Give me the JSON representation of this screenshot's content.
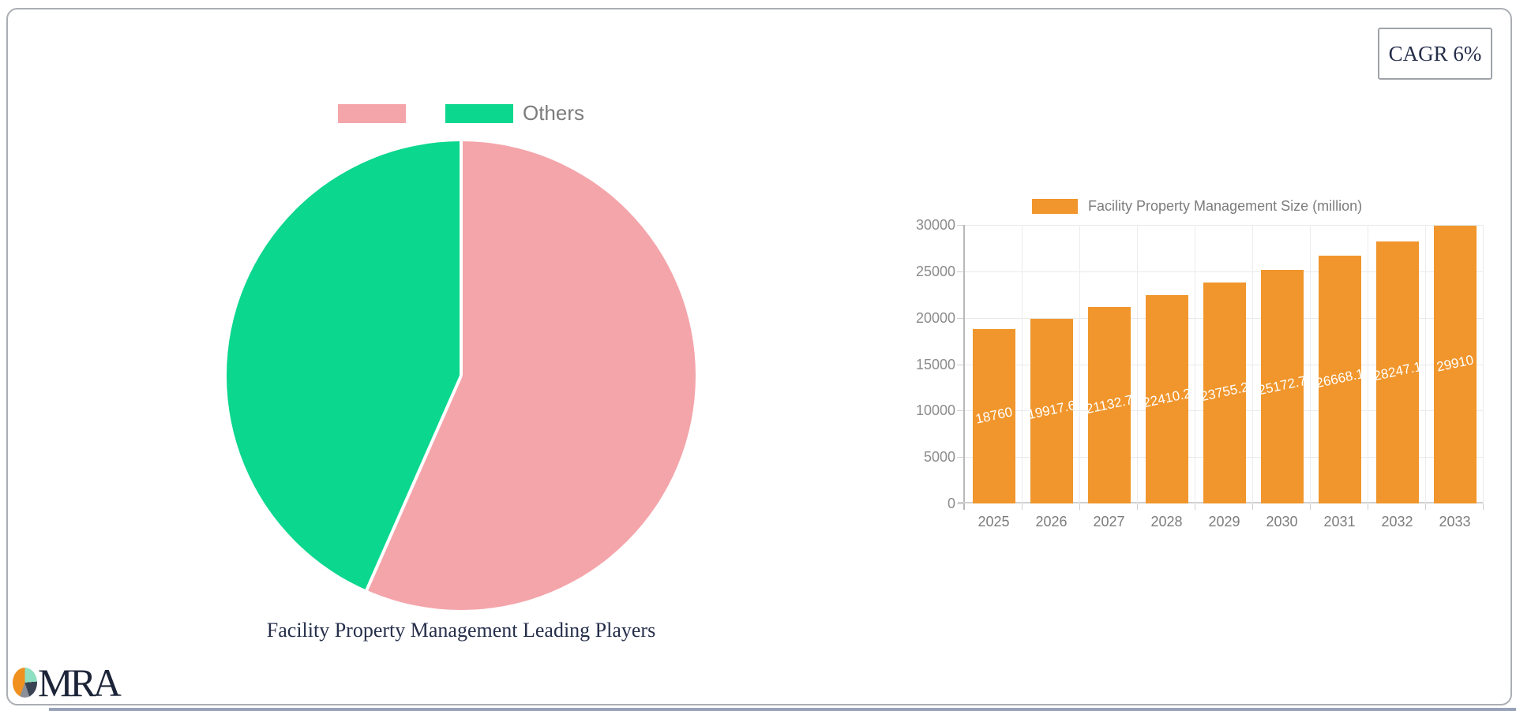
{
  "badge": {
    "label": "CAGR 6%"
  },
  "logo": {
    "text": "MRA"
  },
  "pie": {
    "title": "Facility Property Management Leading Players",
    "legend": [
      {
        "label": "",
        "color": "#F4A5AA"
      },
      {
        "label": "Others",
        "color": "#0BD78E"
      }
    ]
  },
  "bar": {
    "legend_label": "Facility Property Management Size (million)"
  },
  "chart_data": [
    {
      "type": "pie",
      "title": "Facility Property Management Leading Players",
      "labels": [
        "",
        "Others"
      ],
      "values": [
        56.6,
        43.4
      ],
      "colors": [
        "#F4A5AA",
        "#0BD78E"
      ],
      "legend_position": "top",
      "start_angle_deg": 0,
      "slice_border_color": "#ffffff"
    },
    {
      "type": "bar",
      "title": "",
      "legend": "Facility Property Management Size (million)",
      "categories": [
        "2025",
        "2026",
        "2027",
        "2028",
        "2029",
        "2030",
        "2031",
        "2032",
        "2033"
      ],
      "values": [
        18760,
        19917.6,
        21132.7,
        22410.2,
        23755.2,
        25172.7,
        26668.1,
        28247.1,
        29910
      ],
      "value_labels": [
        "18760",
        "19917.6",
        "21132.7",
        "22410.2",
        "23755.2",
        "25172.7",
        "26668.1",
        "28247.1",
        "29910"
      ],
      "bar_color": "#F0962C",
      "value_label_color": "#ffffff",
      "xlabel": "",
      "ylabel": "",
      "ylim": [
        0,
        30000
      ],
      "y_ticks": [
        0,
        5000,
        10000,
        15000,
        20000,
        25000,
        30000
      ],
      "grid": true,
      "legend_position": "top"
    }
  ]
}
